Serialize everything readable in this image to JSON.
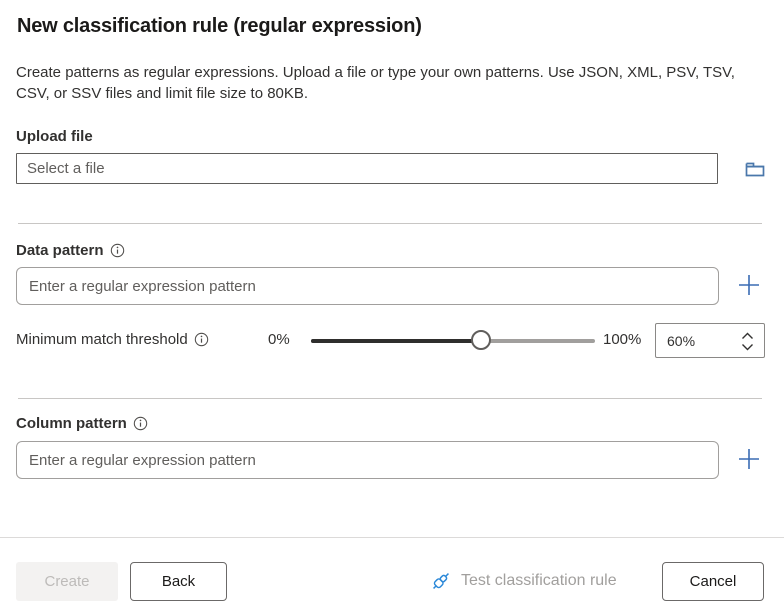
{
  "header": {
    "title": "New classification rule (regular expression)",
    "description": "Create patterns as regular expressions. Upload a file or type your own patterns. Use JSON, XML, PSV, TSV, CSV, or SSV files and limit file size to 80KB."
  },
  "upload": {
    "label": "Upload file",
    "placeholder": "Select a file",
    "value": "",
    "browse_icon": "folder-icon"
  },
  "data_pattern": {
    "label": "Data pattern",
    "info_icon": "info-icon",
    "placeholder": "Enter a regular expression pattern",
    "value": "",
    "add_icon": "plus-icon"
  },
  "threshold": {
    "label": "Minimum match threshold",
    "info_icon": "info-icon",
    "min_label": "0%",
    "max_label": "100%",
    "value_percent": 60,
    "spinner_value": "60%"
  },
  "column_pattern": {
    "label": "Column pattern",
    "info_icon": "info-icon",
    "placeholder": "Enter a regular expression pattern",
    "value": "",
    "add_icon": "plus-icon"
  },
  "footer": {
    "create_label": "Create",
    "back_label": "Back",
    "test_label": "Test classification rule",
    "test_icon": "plug-connected-icon",
    "cancel_label": "Cancel"
  },
  "colors": {
    "accent_plus_blue": "#3a6cb4",
    "folder_blue": "#4a77ab",
    "test_icon_blue": "#2b88d8",
    "slider_fill": "#2f2e2d",
    "slider_track": "#a19f9d",
    "disabled_text": "#a19f9d",
    "divider": "#c8c6c4"
  }
}
